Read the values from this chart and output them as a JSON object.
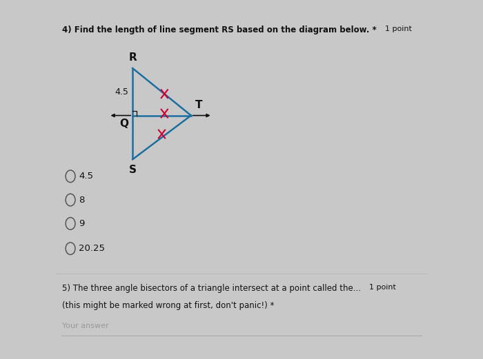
{
  "title": "4) Find the length of line segment RS based on the diagram below. *",
  "title_points": "1 point",
  "bg_color_outer": "#c8c8c8",
  "bg_color_main": "#edecea",
  "bg_color_bottom": "#dddbd5",
  "options": [
    "4.5",
    "8",
    "9",
    "20.25"
  ],
  "diagram_label_R": "R",
  "diagram_label_S": "S",
  "diagram_label_Q": "Q",
  "diagram_label_T": "T",
  "diagram_label_45": "4.5",
  "question5_text1": "5) The three angle bisectors of a triangle intersect at a point called the...",
  "question5_points": "1 point",
  "question5_text2": "(this might be marked wrong at first, don't panic!) *",
  "your_answer": "Your answer",
  "line_color": "#1a6fa0",
  "tick_color": "#cc0033",
  "text_color_dark": "#111111",
  "text_color_gray": "#999999",
  "divider_color": "#bbbbbb"
}
